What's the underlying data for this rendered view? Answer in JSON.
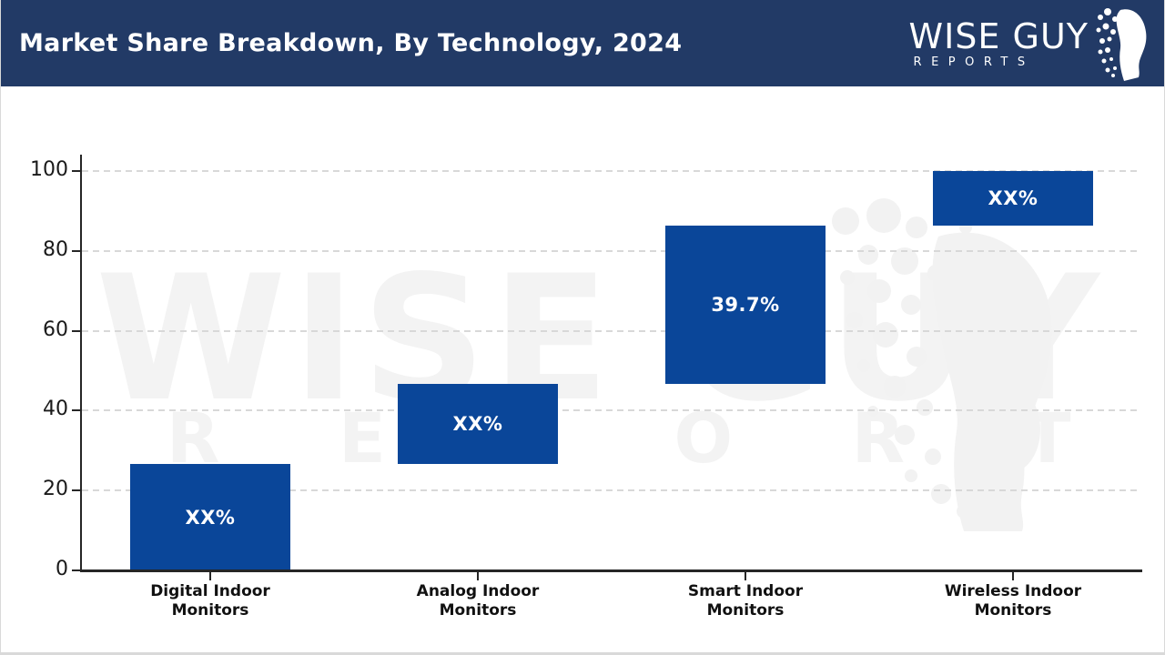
{
  "header": {
    "title": "Market Share Breakdown, By Technology, 2024",
    "brand_line1": "WISE GUY",
    "brand_line2": "REPORTS"
  },
  "watermark": {
    "line1": "WISE GUY",
    "line2": "R E P O R T S"
  },
  "colors": {
    "header_bg": "#223a66",
    "bar_blue": "#0a4699",
    "grid_gray": "#d8d8d8",
    "axis_dark": "#262626",
    "watermark_gray": "#f3f3f3"
  },
  "chart_data": {
    "type": "bar",
    "subtype": "waterfall",
    "title": "Market Share Breakdown, By Technology, 2024",
    "categories": [
      [
        "Digital Indoor",
        "Monitors"
      ],
      [
        "Analog Indoor",
        "Monitors"
      ],
      [
        "Smart Indoor",
        "Monitors"
      ],
      [
        "Wireless Indoor",
        "Monitors"
      ]
    ],
    "bars": [
      {
        "start": 0,
        "end": 26.6,
        "value": 26.6,
        "label": "XX%"
      },
      {
        "start": 26.6,
        "end": 46.7,
        "value": 20.1,
        "label": "XX%"
      },
      {
        "start": 46.7,
        "end": 86.4,
        "value": 39.7,
        "label": "39.7%"
      },
      {
        "start": 86.4,
        "end": 100,
        "value": 13.6,
        "label": "XX%"
      }
    ],
    "yticks": [
      0,
      20,
      40,
      60,
      80,
      100
    ],
    "ylim": [
      0,
      104
    ],
    "xlabel": "",
    "ylabel": "",
    "grid": "horizontal-dashed",
    "legend": "none",
    "bar_color": "#0a4699",
    "bar_label_color": "#ffffff"
  }
}
